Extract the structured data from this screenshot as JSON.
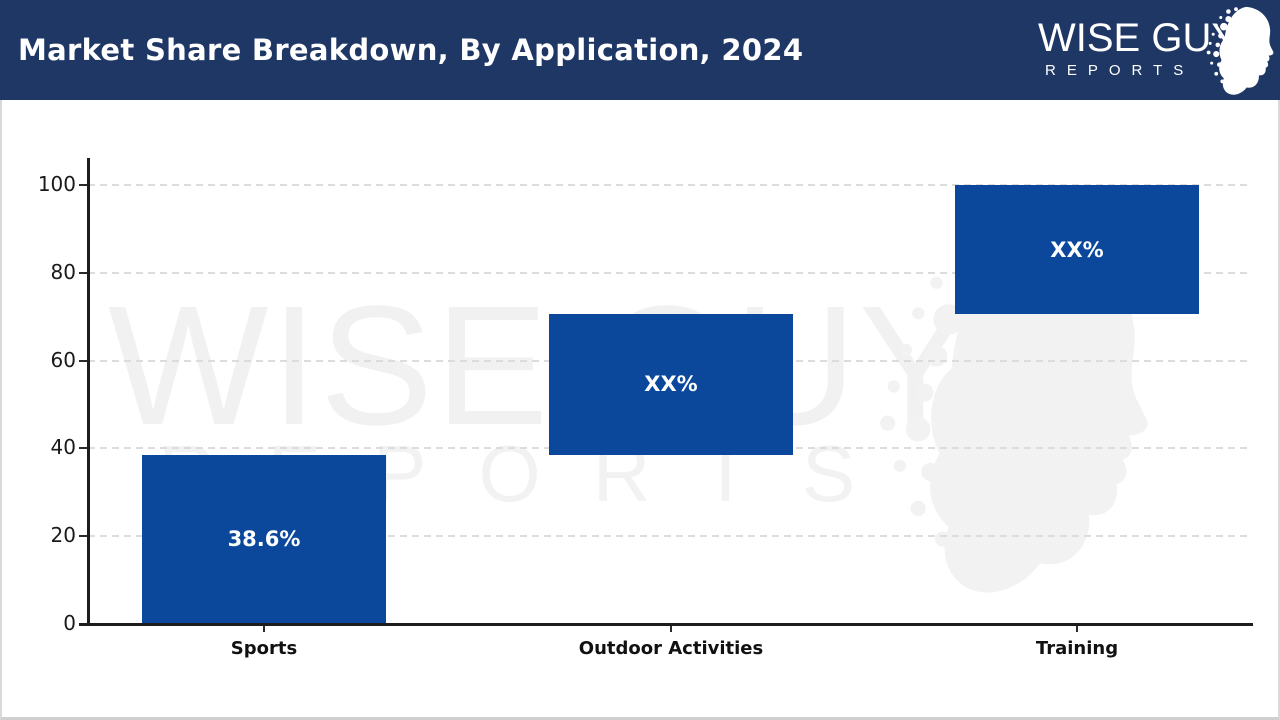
{
  "header": {
    "title": "Market Share Breakdown, By Application, 2024",
    "bg_color": "#1f3765",
    "logo": {
      "wordmark": "WISE GUY",
      "subtext": "REPORTS"
    }
  },
  "watermark": {
    "wordmark": "WISE GUY",
    "subtext": "REPORTS"
  },
  "chart_data": {
    "type": "bar",
    "subtype": "waterfall-floating-bars",
    "title": "Market Share Breakdown, By Application, 2024",
    "xlabel": "",
    "ylabel": "",
    "categories": [
      "Sports",
      "Outdoor Activities",
      "Training"
    ],
    "segments": [
      {
        "category": "Sports",
        "start": 0,
        "end": 38.6,
        "label": "38.6%"
      },
      {
        "category": "Outdoor Activities",
        "start": 38.6,
        "end": 70.6,
        "label": "XX%"
      },
      {
        "category": "Training",
        "start": 70.6,
        "end": 100,
        "label": "XX%"
      }
    ],
    "yticks": [
      0,
      20,
      40,
      60,
      80,
      100
    ],
    "ylim": [
      0,
      105.8
    ],
    "grid": true,
    "legend": "none",
    "bar_color": "#0b489c",
    "bar_label_color": "#ffffff",
    "gridline_color": "#dcdcdc",
    "axis_color": "#1d1d1d",
    "tick_label_color": "#1a1a1a"
  }
}
